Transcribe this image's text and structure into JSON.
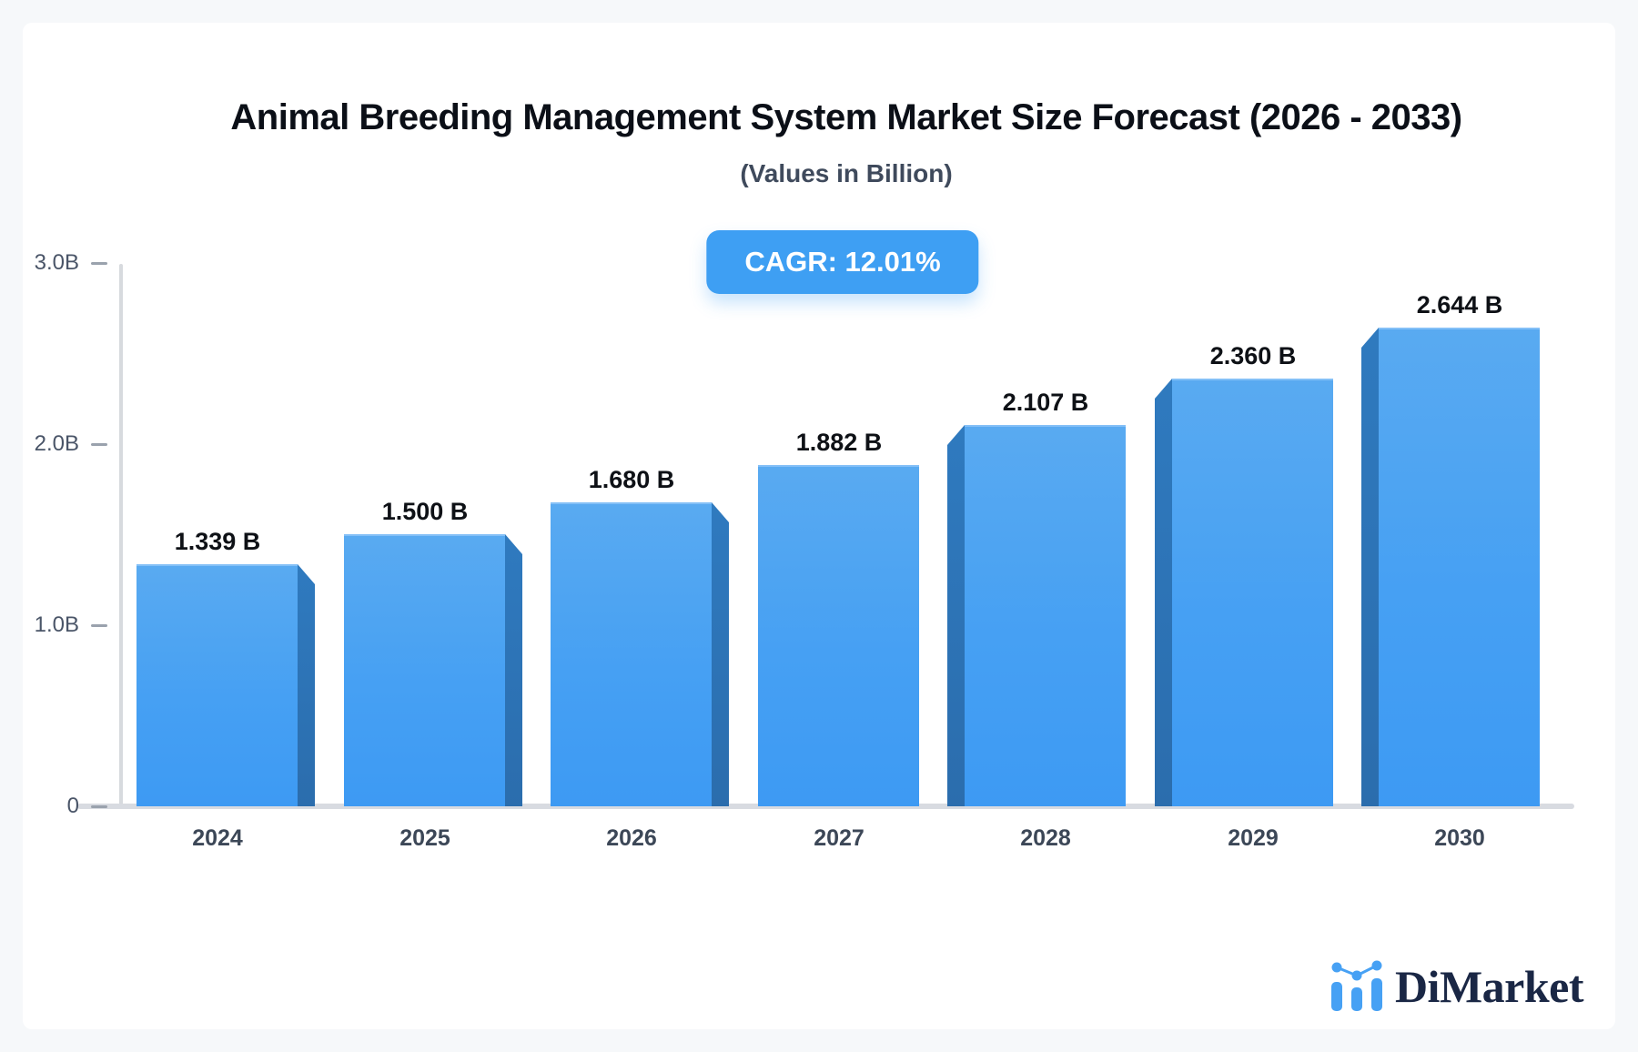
{
  "header": {
    "title": "Animal Breeding Management System Market Size Forecast (2026 - 2033)",
    "subtitle": "(Values in Billion)",
    "cagr_badge": "CAGR: 12.01%"
  },
  "chart_data": {
    "type": "bar",
    "title": "Animal Breeding Management System Market Size Forecast (2026 - 2033)",
    "subtitle": "(Values in Billion)",
    "annotation": "CAGR: 12.01%",
    "categories": [
      "2024",
      "2025",
      "2026",
      "2027",
      "2028",
      "2029",
      "2030"
    ],
    "values": [
      1.339,
      1.5,
      1.68,
      1.882,
      2.107,
      2.36,
      2.644
    ],
    "value_labels": [
      "1.339 B",
      "1.500 B",
      "1.680 B",
      "1.882 B",
      "2.107 B",
      "2.360 B",
      "2.644 B"
    ],
    "unit": "Billion",
    "xlabel": "",
    "ylabel": "",
    "ylim": [
      0,
      3.0
    ],
    "yticks": [
      {
        "value": 3.0,
        "label": "3.0B"
      },
      {
        "value": 2.0,
        "label": "2.0B"
      },
      {
        "value": 1.0,
        "label": "1.0B"
      },
      {
        "value": 0,
        "label": "0"
      }
    ],
    "grid": false,
    "legend": "none",
    "bar_face_color_top": "#59aaf1",
    "bar_face_color_bottom": "#3d9af3",
    "bar_side_color": "#2d74b8",
    "badge_color": "#3e9ff3",
    "axis_color": "#d7dade"
  },
  "footer": {
    "brand": "DiMarket",
    "logo_icon": "bar-chart-icon",
    "brand_color": "#1a2745",
    "icon_color": "#47a1f4"
  }
}
